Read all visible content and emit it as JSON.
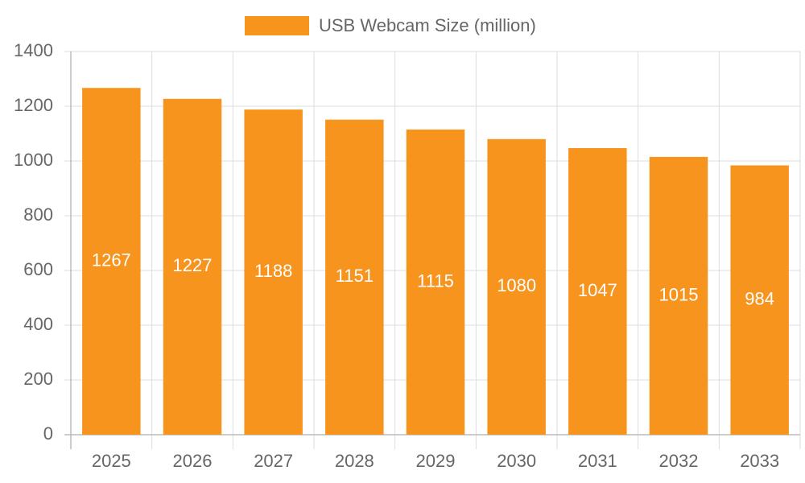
{
  "chart_data": {
    "type": "bar",
    "categories": [
      "2025",
      "2026",
      "2027",
      "2028",
      "2029",
      "2030",
      "2031",
      "2032",
      "2033"
    ],
    "series": [
      {
        "name": "USB Webcam Size (million)",
        "color": "#f7941d",
        "values": [
          1267,
          1227,
          1188,
          1151,
          1115,
          1080,
          1047,
          1015,
          984
        ]
      }
    ],
    "ylim": [
      0,
      1400
    ],
    "yticks": [
      0,
      200,
      400,
      600,
      800,
      1000,
      1200,
      1400
    ],
    "grid": true,
    "legend": "top"
  }
}
